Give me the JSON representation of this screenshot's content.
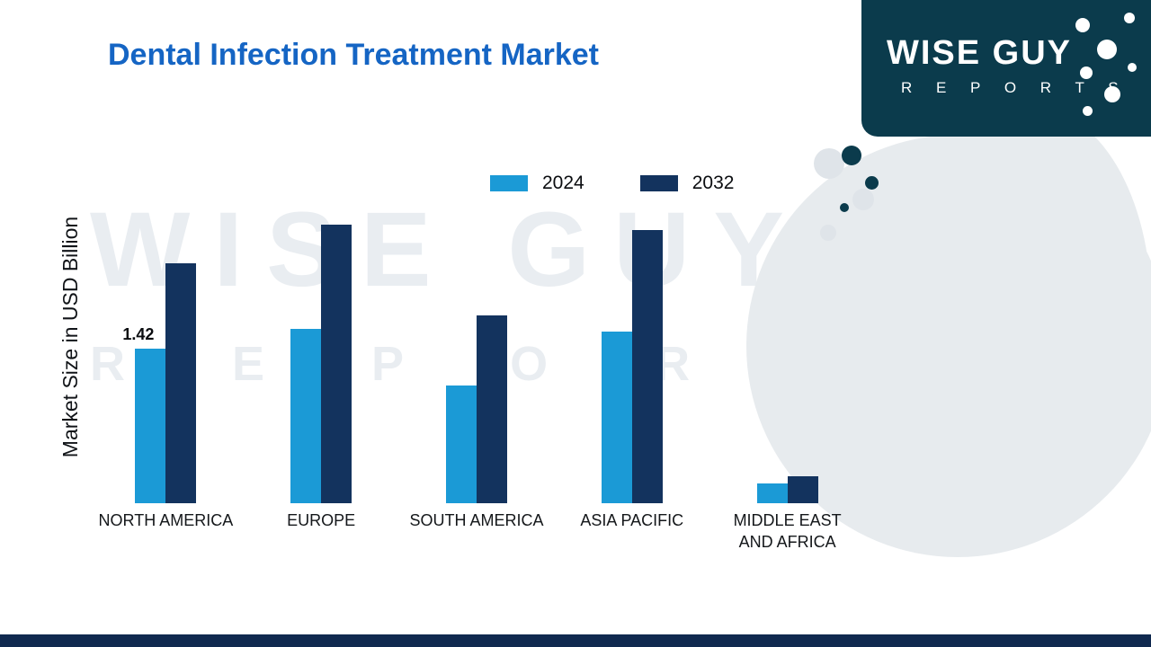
{
  "title": "Dental Infection Treatment Market",
  "ylabel": "Market Size in USD Billion",
  "logo": {
    "line1": "WISE GUY",
    "line2": "R E P O R T S",
    "bg_color": "#0b3b4c"
  },
  "watermark": {
    "line1": "WISE GUY",
    "line2": "R E P O R T S"
  },
  "colors": {
    "series_2024": "#1b9ad6",
    "series_2032": "#13335e",
    "title": "#1565c4",
    "bottom_bar": "#10294f"
  },
  "chart_data": {
    "type": "bar",
    "title": "Dental Infection Treatment Market",
    "xlabel": "",
    "ylabel": "Market Size in USD Billion",
    "categories": [
      "NORTH AMERICA",
      "EUROPE",
      "SOUTH AMERICA",
      "ASIA PACIFIC",
      "MIDDLE EAST AND AFRICA"
    ],
    "series": [
      {
        "name": "2024",
        "color": "#1b9ad6",
        "values": [
          1.42,
          1.6,
          1.08,
          1.57,
          0.18
        ]
      },
      {
        "name": "2032",
        "color": "#13335e",
        "values": [
          2.2,
          2.55,
          1.72,
          2.5,
          0.25
        ]
      }
    ],
    "annotations": [
      {
        "category_index": 0,
        "series_index": 0,
        "text": "1.42"
      }
    ],
    "ylim": [
      0,
      2.8
    ],
    "grid": false,
    "legend_position": "top-center",
    "legend": [
      "2024",
      "2032"
    ]
  }
}
